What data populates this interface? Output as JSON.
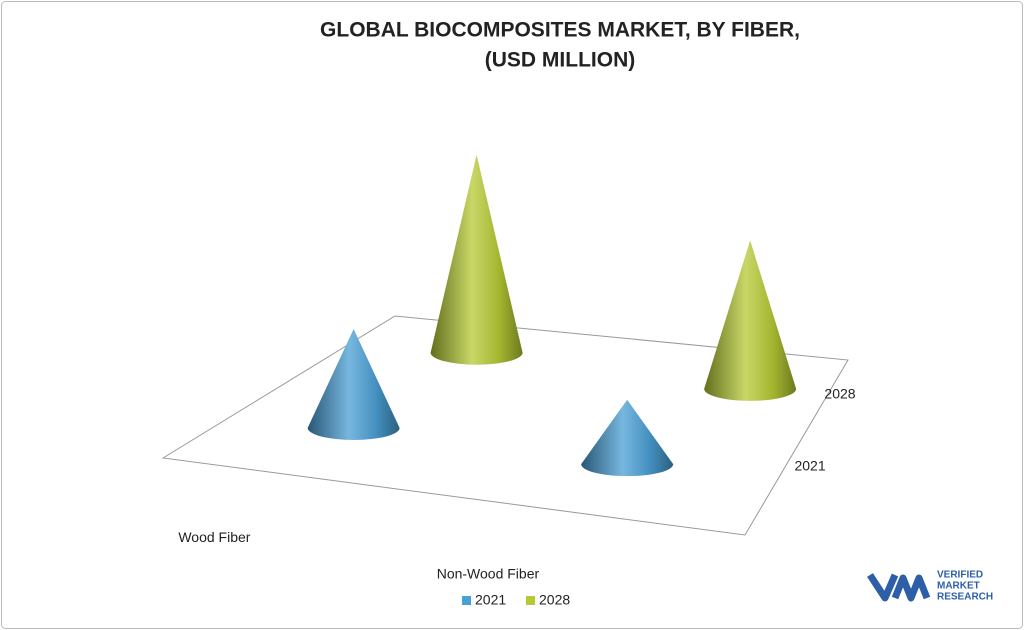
{
  "chart_data": {
    "type": "cone3d",
    "title": [
      "GLOBAL BIOCOMPOSITES MARKET, BY FIBER,",
      "(USD MILLION)"
    ],
    "categories": [
      "Wood Fiber",
      "Non-Wood Fiber"
    ],
    "series": [
      {
        "name": "2021",
        "color": "#4a9fd4",
        "values": [
          100,
          65
        ]
      },
      {
        "name": "2028",
        "color": "#b5c934",
        "values": [
          200,
          150
        ]
      }
    ],
    "legend": "bottom",
    "watermark": [
      "VERIFIED",
      "MARKET",
      "RESEARCH"
    ]
  }
}
